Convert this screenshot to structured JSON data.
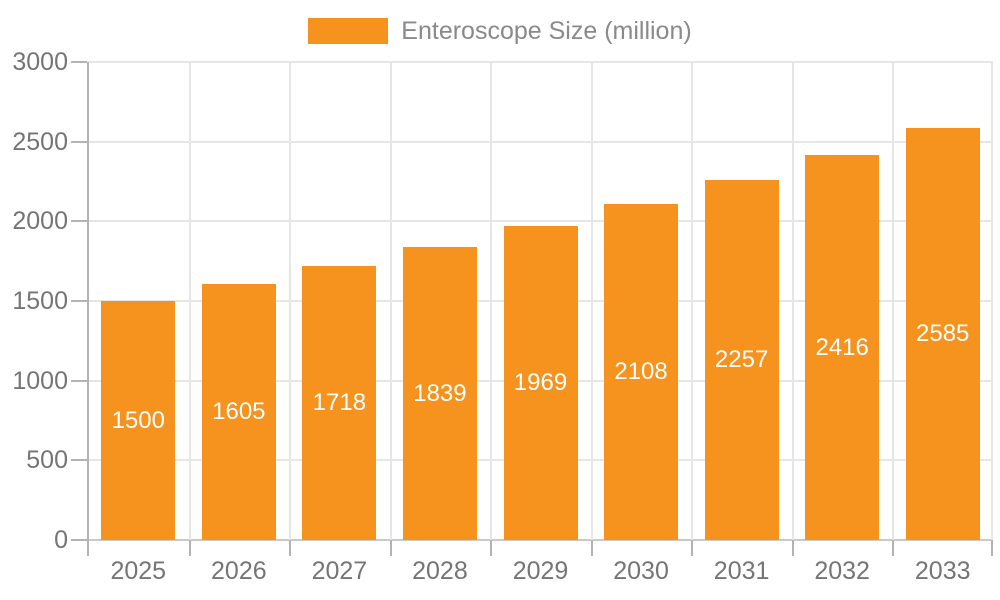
{
  "legend": {
    "label": "Enteroscope Size (million)"
  },
  "chart_data": {
    "type": "bar",
    "title": "Enteroscope Size (million)",
    "categories": [
      "2025",
      "2026",
      "2027",
      "2028",
      "2029",
      "2030",
      "2031",
      "2032",
      "2033"
    ],
    "values": [
      1500,
      1605,
      1718,
      1839,
      1969,
      2108,
      2257,
      2416,
      2585
    ],
    "yticks": [
      0,
      500,
      1000,
      1500,
      2000,
      2500,
      3000
    ],
    "ylim": [
      0,
      3000
    ],
    "xlabel": "",
    "ylabel": "",
    "grid": true,
    "legend_position": "top",
    "bar_color": "#F6921E",
    "value_label_color": "#ffffff",
    "axis_label_color": "#757575",
    "legend_text_color": "#8a8a8a",
    "gridline_color": "#e6e6e6",
    "axis_line_color": "#b3b3b3"
  }
}
